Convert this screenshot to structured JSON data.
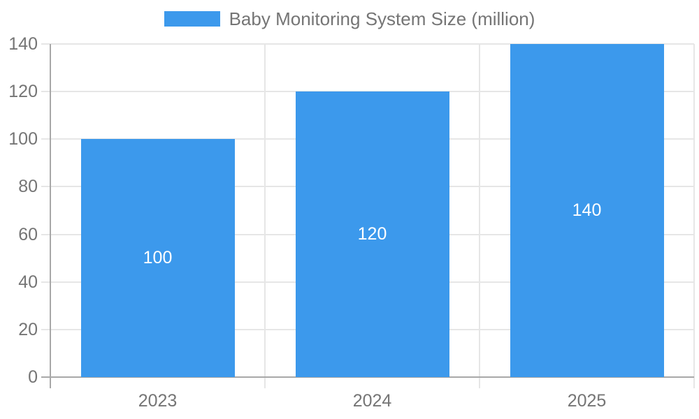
{
  "chart_data": {
    "type": "bar",
    "legend": "Baby Monitoring System Size (million)",
    "legend_position": "top-center",
    "categories": [
      "2023",
      "2024",
      "2025"
    ],
    "values": [
      100,
      120,
      140
    ],
    "data_labels": [
      "100",
      "120",
      "140"
    ],
    "xlabel": "",
    "ylabel": "",
    "ylim": [
      0,
      140
    ],
    "yticks": [
      0,
      20,
      40,
      60,
      80,
      100,
      120,
      140
    ],
    "grid": true,
    "colors": {
      "bar": "#3C99EC",
      "axis": "#A8A8A8",
      "gridline": "#E6E6E6",
      "tick_label": "#757575",
      "data_label": "#FFFFFF",
      "background": "#FFFFFF"
    }
  }
}
